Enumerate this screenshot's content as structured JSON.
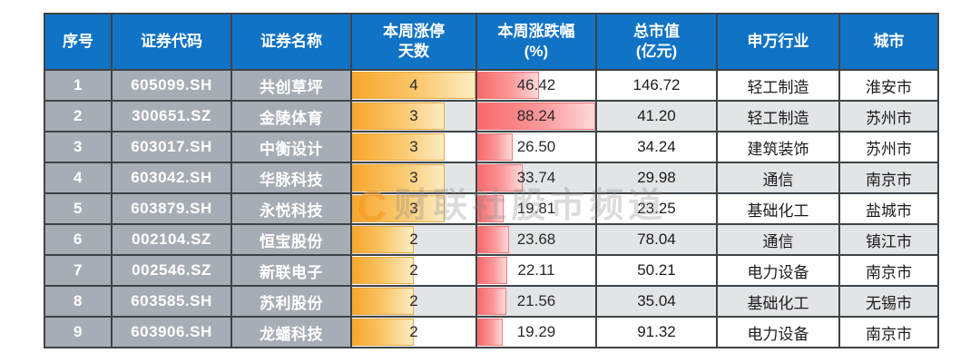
{
  "watermark": {
    "logo": "C",
    "text": "财联社股市频道",
    "logo_color": "#F59A23"
  },
  "colors": {
    "header_bg": "#1173C5",
    "header_text": "#FFFFFF",
    "left_column_bg": "#A7ADB4",
    "alt_row_bg": "#E3E4E5",
    "row_bg": "#FFFFFF",
    "grid_line": "#3E4347",
    "gold_bar": "#F7A62C",
    "red_bar": "#F8696B"
  },
  "header_lines": [
    [
      "序号"
    ],
    [
      "证券代码"
    ],
    [
      "证券名称"
    ],
    [
      "本周涨停",
      "天数"
    ],
    [
      "本周涨跌幅",
      "(%)"
    ],
    [
      "总市值",
      "(亿元)"
    ],
    [
      "申万行业"
    ],
    [
      "城市"
    ]
  ],
  "chart_data": {
    "type": "table",
    "columns": [
      "序号",
      "证券代码",
      "证券名称",
      "本周涨停天数",
      "本周涨跌幅(%)",
      "总市值(亿元)",
      "申万行业",
      "城市"
    ],
    "data_bars": {
      "days": {
        "column": "本周涨停天数",
        "max": 4,
        "style": "gold-gradient"
      },
      "change_pct": {
        "column": "本周涨跌幅(%)",
        "max": 88.24,
        "style": "red-gradient"
      }
    },
    "rows": [
      {
        "seq": "1",
        "code": "605099.SH",
        "name": "共创草坪",
        "days": "4",
        "change_pct": "46.42",
        "market_cap": "146.72",
        "industry": "轻工制造",
        "city": "淮安市"
      },
      {
        "seq": "2",
        "code": "300651.SZ",
        "name": "金陵体育",
        "days": "3",
        "change_pct": "88.24",
        "market_cap": "41.20",
        "industry": "轻工制造",
        "city": "苏州市"
      },
      {
        "seq": "3",
        "code": "603017.SH",
        "name": "中衡设计",
        "days": "3",
        "change_pct": "26.50",
        "market_cap": "34.24",
        "industry": "建筑装饰",
        "city": "苏州市"
      },
      {
        "seq": "4",
        "code": "603042.SH",
        "name": "华脉科技",
        "days": "3",
        "change_pct": "33.74",
        "market_cap": "29.98",
        "industry": "通信",
        "city": "南京市"
      },
      {
        "seq": "5",
        "code": "603879.SH",
        "name": "永悦科技",
        "days": "3",
        "change_pct": "19.81",
        "market_cap": "23.25",
        "industry": "基础化工",
        "city": "盐城市"
      },
      {
        "seq": "6",
        "code": "002104.SZ",
        "name": "恒宝股份",
        "days": "2",
        "change_pct": "23.68",
        "market_cap": "78.04",
        "industry": "通信",
        "city": "镇江市"
      },
      {
        "seq": "7",
        "code": "002546.SZ",
        "name": "新联电子",
        "days": "2",
        "change_pct": "22.11",
        "market_cap": "50.21",
        "industry": "电力设备",
        "city": "南京市"
      },
      {
        "seq": "8",
        "code": "603585.SH",
        "name": "苏利股份",
        "days": "2",
        "change_pct": "21.56",
        "market_cap": "35.04",
        "industry": "基础化工",
        "city": "无锡市"
      },
      {
        "seq": "9",
        "code": "603906.SH",
        "name": "龙蟠科技",
        "days": "2",
        "change_pct": "19.29",
        "market_cap": "91.32",
        "industry": "电力设备",
        "city": "南京市"
      }
    ]
  }
}
